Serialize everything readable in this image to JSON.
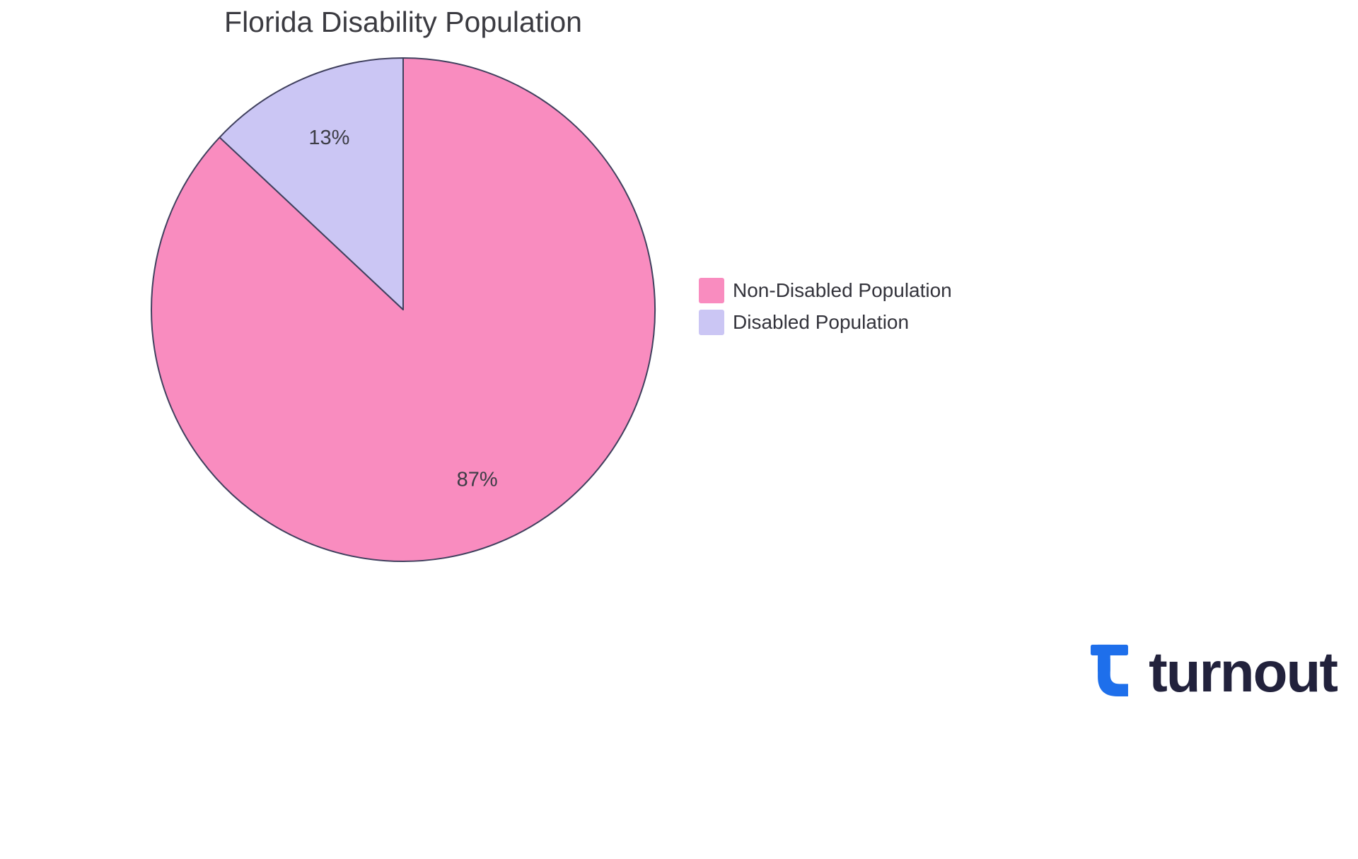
{
  "chart_data": {
    "type": "pie",
    "title": "Florida Disability Population",
    "labels": [
      "Non-Disabled Population",
      "Disabled Population"
    ],
    "values": [
      87,
      13
    ],
    "percent_labels": [
      "87%",
      "13%"
    ],
    "colors": [
      "#F98CBF",
      "#CBC6F4"
    ],
    "outline_color": "#40405E",
    "start_angle_deg": 0,
    "direction": "clockwise",
    "legend_position": "right",
    "label_radius_fraction": 0.74
  },
  "branding": {
    "logo_text": "turnout",
    "logo_color": "#1E6FEB",
    "logo_text_color": "#22223C"
  }
}
